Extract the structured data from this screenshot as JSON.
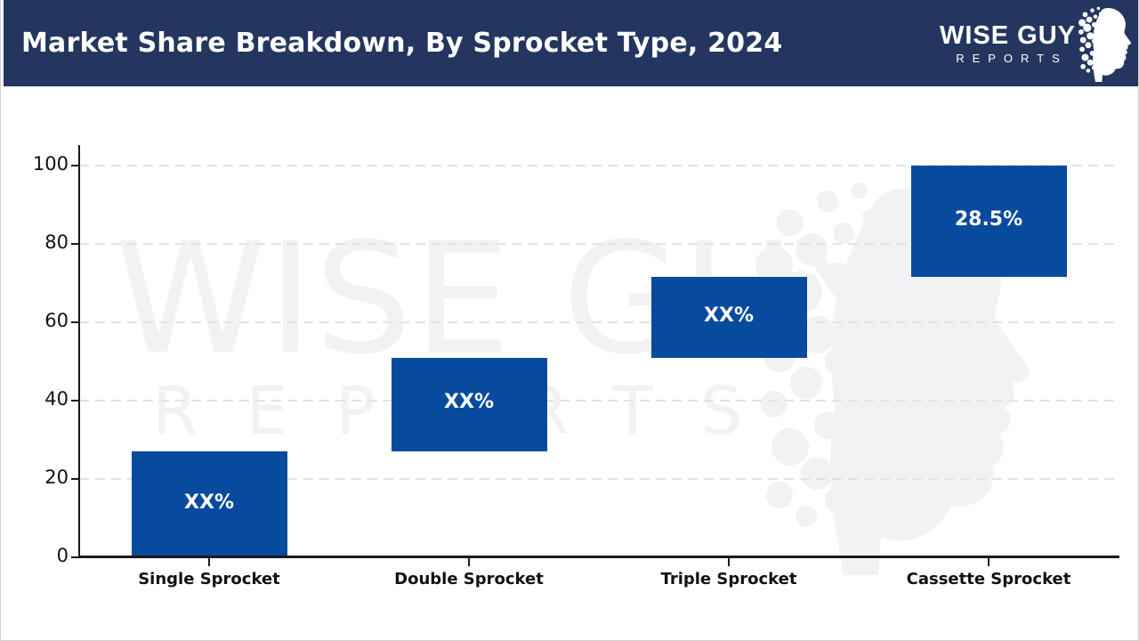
{
  "header": {
    "title": "Market Share Breakdown, By Sprocket Type, 2024",
    "bg_color": "#24365F",
    "brand": {
      "name": "WISE GUY",
      "subtitle": "REPORTS"
    }
  },
  "watermark": {
    "wordmark": "WISE GUY",
    "subtitle": "REPORTS"
  },
  "chart_data": {
    "type": "bar",
    "variant": "waterfall",
    "title": "Market Share Breakdown, By Sprocket Type, 2024",
    "categories": [
      "Single Sprocket",
      "Double Sprocket",
      "Triple Sprocket",
      "Cassette Sprocket"
    ],
    "segments": [
      {
        "category": "Single Sprocket",
        "start": 0,
        "end": 27,
        "value": 27,
        "label": "XX%"
      },
      {
        "category": "Double Sprocket",
        "start": 27,
        "end": 51,
        "value": 24,
        "label": "XX%"
      },
      {
        "category": "Triple Sprocket",
        "start": 51,
        "end": 71.5,
        "value": 20.5,
        "label": "XX%"
      },
      {
        "category": "Cassette Sprocket",
        "start": 71.5,
        "end": 100,
        "value": 28.5,
        "label": "28.5%"
      }
    ],
    "y_ticks": [
      0,
      20,
      40,
      60,
      80,
      100
    ],
    "ylim": [
      0,
      105
    ],
    "xlabel": "",
    "ylabel": "",
    "grid": "horizontal-dashed",
    "legend": "none",
    "bar_color": "#084A9E",
    "bar_label_color": "#FFFFFF",
    "axis_color": "#1A1A1A"
  }
}
